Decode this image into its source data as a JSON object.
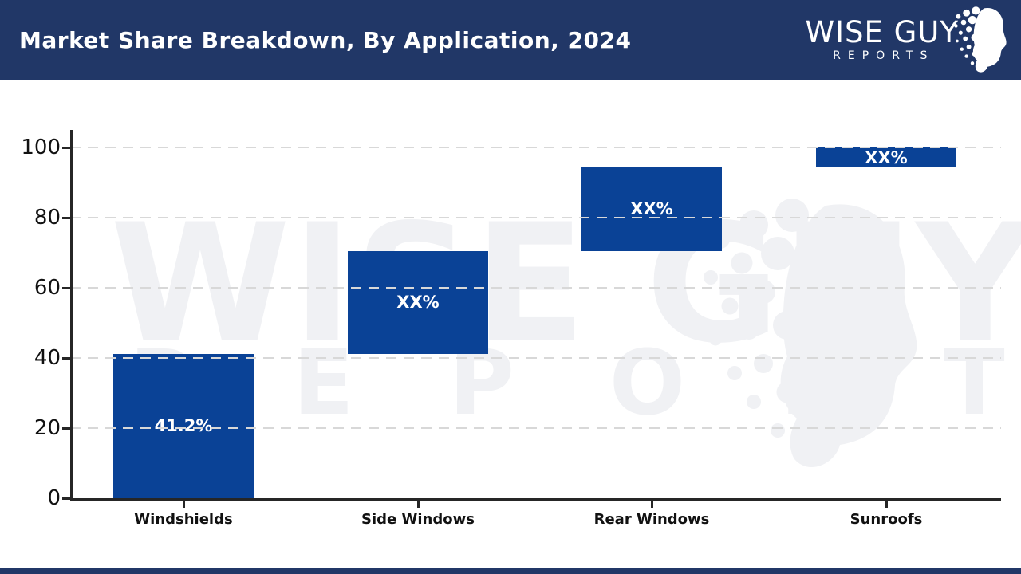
{
  "header": {
    "title": "Market Share Breakdown, By Application, 2024",
    "bg_color": "#213767",
    "logo": {
      "line1": "WISE GUY",
      "line2": "REPORTS"
    }
  },
  "watermark": {
    "line1": "WISE GUY",
    "line2": "REPORTS"
  },
  "footer": {
    "bg_color": "#213767"
  },
  "chart_data": {
    "type": "bar",
    "subtype": "waterfall",
    "title": "Market Share Breakdown, By Application, 2024",
    "categories": [
      "Windshields",
      "Side Windows",
      "Rear Windows",
      "Sunroofs"
    ],
    "values": [
      41.2,
      29.3,
      23.8,
      5.7
    ],
    "cumulative": [
      41.2,
      70.5,
      94.3,
      100
    ],
    "bar_labels": [
      "41.2%",
      "XX%",
      "XX%",
      "XX%"
    ],
    "xlabel": "",
    "ylabel": "",
    "yticks": [
      0,
      20,
      40,
      60,
      80,
      100
    ],
    "ylim": [
      0,
      105
    ],
    "grid": "dashed-horizontal",
    "legend": "none",
    "bar_color": "#0a4296",
    "grid_color": "#d8d8d8",
    "axis_color": "#262626",
    "bar_label_color": "#ffffff"
  }
}
